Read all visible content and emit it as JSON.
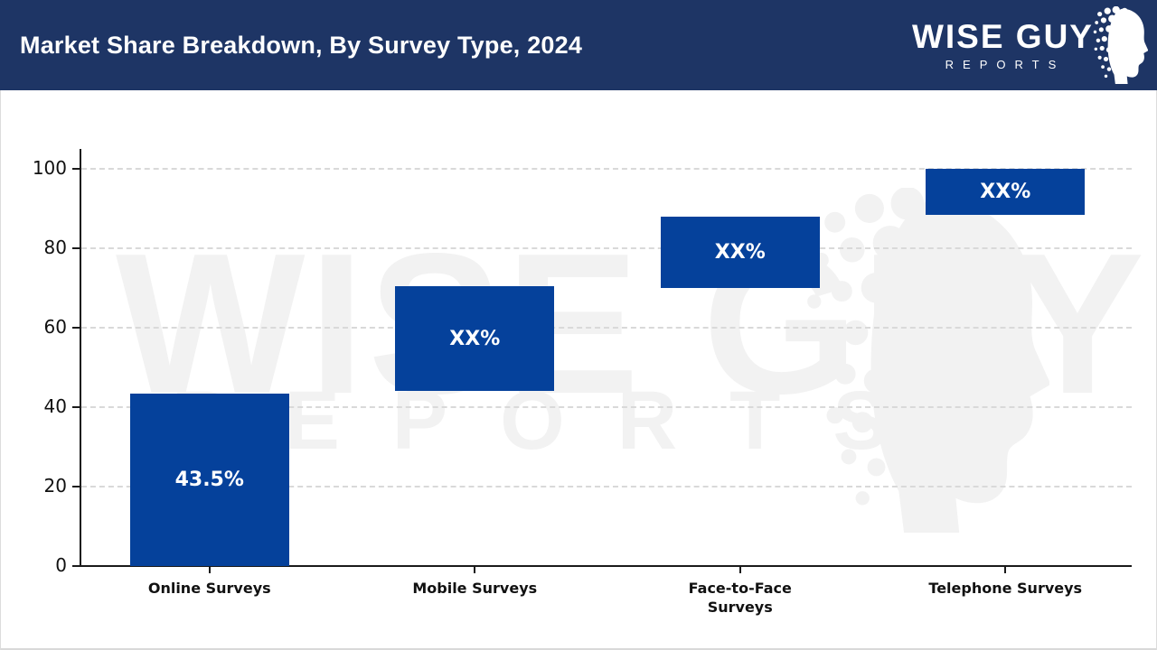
{
  "header": {
    "title": "Market Share Breakdown, By Survey Type, 2024",
    "logo": {
      "line1": "WISE GUY",
      "line2": "REPORTS"
    }
  },
  "watermark": {
    "line1": "WISE GUY",
    "line2": "REPORTS"
  },
  "colors": {
    "header_bg": "#1e3565",
    "bar": "#05419b",
    "grid": "#d9d9d9",
    "axis": "#1a1a1a",
    "watermark": "#f2f2f2",
    "title": "#ffffff",
    "bar_label": "#ffffff",
    "tick_label": "#111111",
    "category_label": "#111111"
  },
  "chart_data": {
    "type": "bar",
    "subtype": "floating-waterfall",
    "title": "Market Share Breakdown, By Survey Type, 2024",
    "categories": [
      "Online Surveys",
      "Mobile Surveys",
      "Face-to-Face Surveys",
      "Telephone Surveys"
    ],
    "bars": [
      {
        "category": "Online Surveys",
        "base": 0,
        "top": 43.5,
        "label": "43.5%"
      },
      {
        "category": "Mobile Surveys",
        "base": 44,
        "top": 70.5,
        "label": "XX%"
      },
      {
        "category": "Face-to-Face Surveys",
        "base": 70,
        "top": 88,
        "label": "XX%"
      },
      {
        "category": "Telephone Surveys",
        "base": 88.5,
        "top": 100,
        "label": "XX%"
      }
    ],
    "y_ticks": [
      0,
      20,
      40,
      60,
      80,
      100
    ],
    "ylim": [
      0,
      105
    ],
    "xlabel": "",
    "ylabel": "",
    "grid": "horizontal-dashed",
    "legend": "none",
    "bar_color": "#05419b",
    "value_label_color": "#ffffff"
  }
}
